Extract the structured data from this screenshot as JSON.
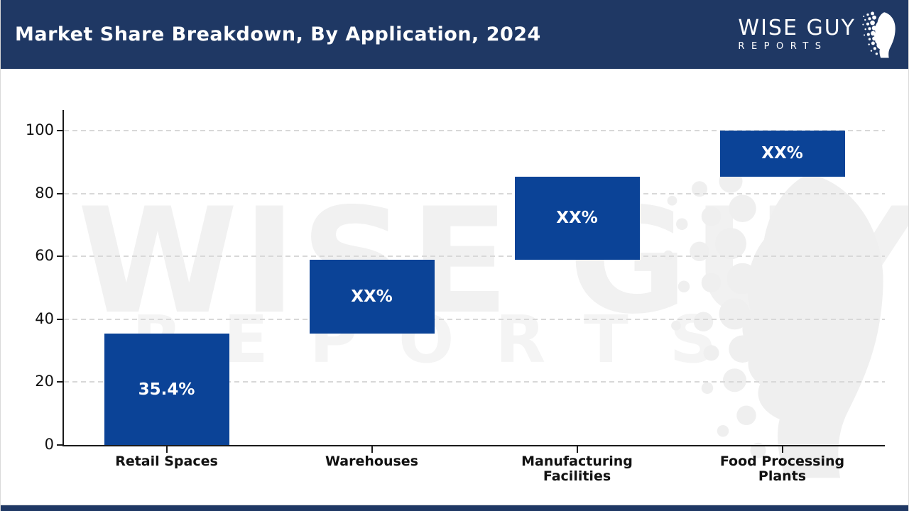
{
  "header": {
    "title": "Market Share Breakdown, By Application, 2024",
    "logo": {
      "line1": "WISE GUY",
      "line2": "REPORTS"
    }
  },
  "watermark": {
    "line1": "WISE GUY",
    "line2": "REPORTS"
  },
  "chart_data": {
    "type": "bar",
    "subtype": "waterfall",
    "title": "Market Share Breakdown, By Application, 2024",
    "categories": [
      "Retail Spaces",
      "Warehouses",
      "Manufacturing\nFacilities",
      "Food Processing\nPlants"
    ],
    "series": [
      {
        "name": "Market Share",
        "segments": [
          {
            "category": "Retail Spaces",
            "start": 0,
            "end": 35.4,
            "increment": 35.4,
            "label": "35.4%"
          },
          {
            "category": "Warehouses",
            "start": 35.4,
            "end": 59.0,
            "increment": 23.6,
            "label": "XX%"
          },
          {
            "category": "Manufacturing Facilities",
            "start": 59.0,
            "end": 85.4,
            "increment": 26.4,
            "label": "XX%"
          },
          {
            "category": "Food Processing Plants",
            "start": 85.4,
            "end": 100.0,
            "increment": 14.6,
            "label": "XX%"
          }
        ]
      }
    ],
    "xlabel": "",
    "ylabel": "",
    "ylim": [
      0,
      100
    ],
    "yticks": [
      0,
      20,
      40,
      60,
      80,
      100
    ],
    "grid": "horizontal-dashed",
    "legend": "none",
    "bar_color": "#0b4397",
    "bar_label_color": "#ffffff"
  },
  "colors": {
    "header_bg": "#1f3864",
    "footer_bg": "#1f3864",
    "bar": "#0b4397",
    "gridline": "#d8d8d8",
    "axis": "#1a1a1a",
    "watermark_text": "#f1f1f1"
  }
}
